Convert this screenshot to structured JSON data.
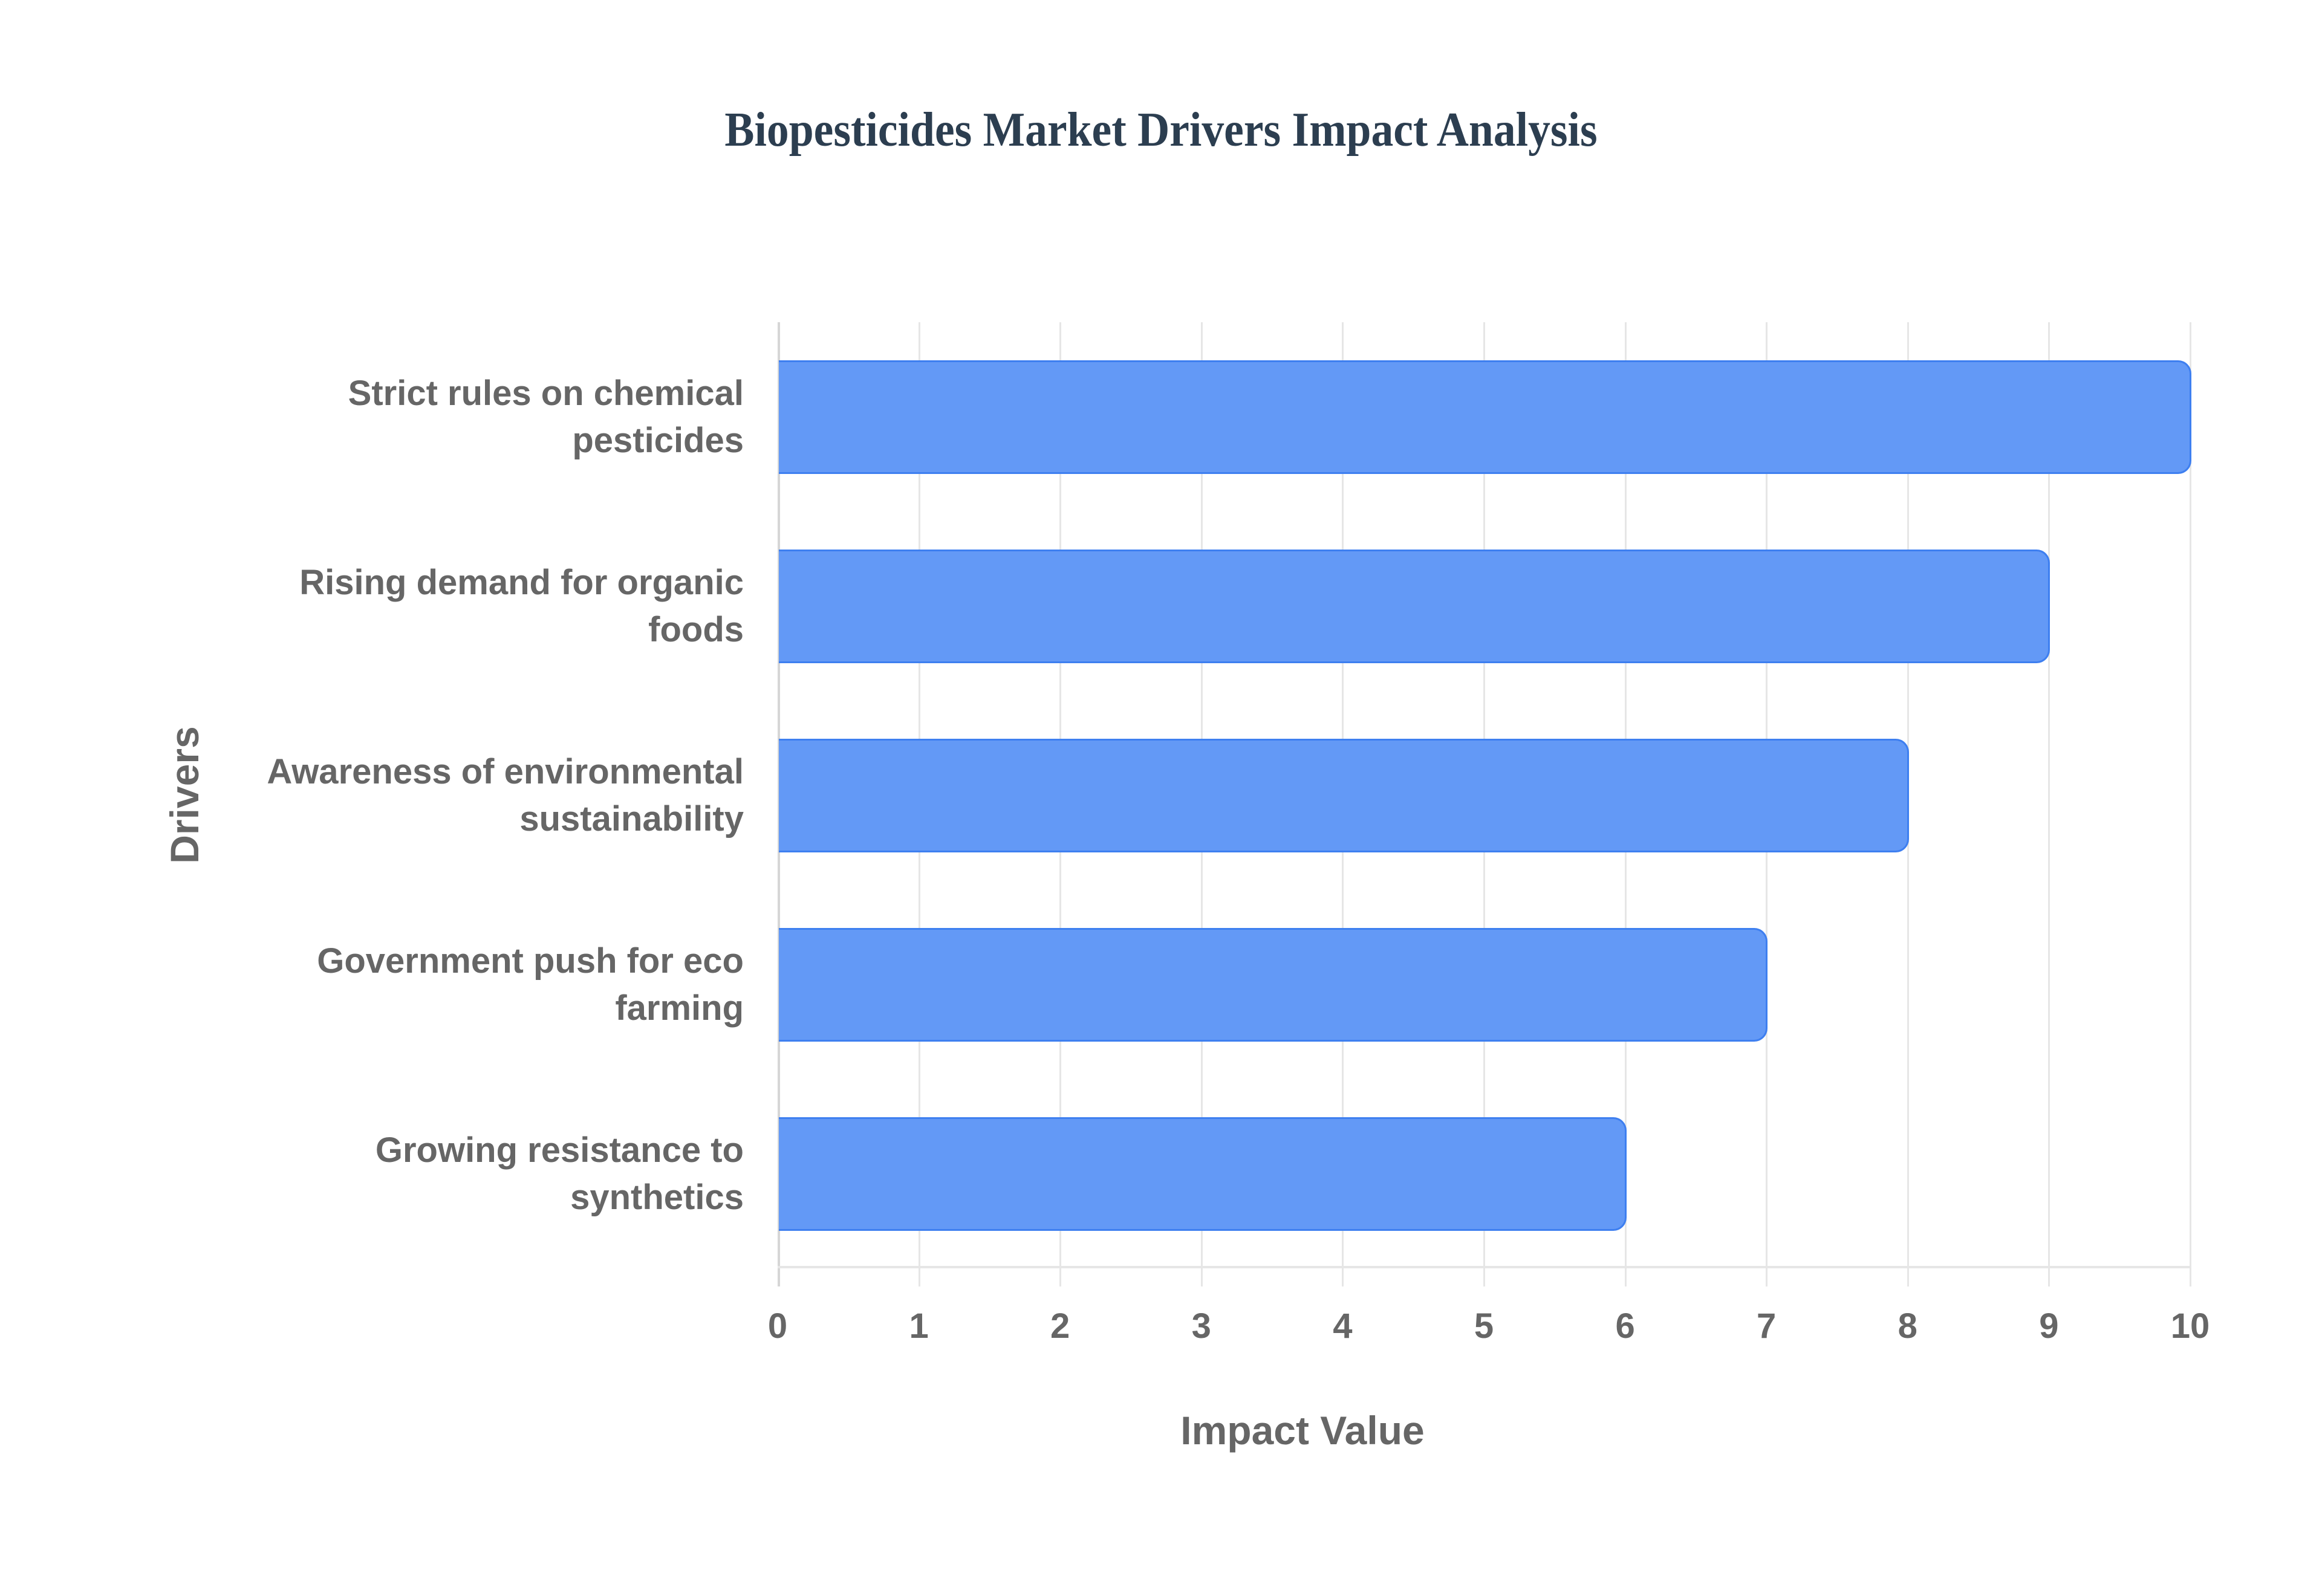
{
  "chart_data": {
    "type": "bar",
    "orientation": "horizontal",
    "title": "Biopesticides Market Drivers Impact Analysis",
    "xlabel": "Impact Value",
    "ylabel": "Drivers",
    "categories": [
      "Strict rules on chemical pesticides",
      "Rising demand for organic foods",
      "Awareness of environmental sustainability",
      "Government push for eco farming",
      "Growing resistance to synthetics"
    ],
    "category_lines": [
      [
        "Strict rules on chemical",
        "pesticides"
      ],
      [
        "Rising demand for organic",
        "foods"
      ],
      [
        "Awareness of environmental",
        "sustainability"
      ],
      [
        "Government push for eco",
        "farming"
      ],
      [
        "Growing resistance to",
        "synthetics"
      ]
    ],
    "values": [
      10,
      9,
      8,
      7,
      6
    ],
    "xlim": [
      0,
      10
    ],
    "xticks": [
      "0",
      "1",
      "2",
      "3",
      "4",
      "5",
      "6",
      "7",
      "8",
      "9",
      "10"
    ],
    "grid": true,
    "legend": null,
    "colors": {
      "bar_fill": "#6399f6",
      "bar_border": "#3e7ff0",
      "title": "#2c3e50",
      "text": "#666666",
      "grid": "#e6e6e6"
    }
  }
}
